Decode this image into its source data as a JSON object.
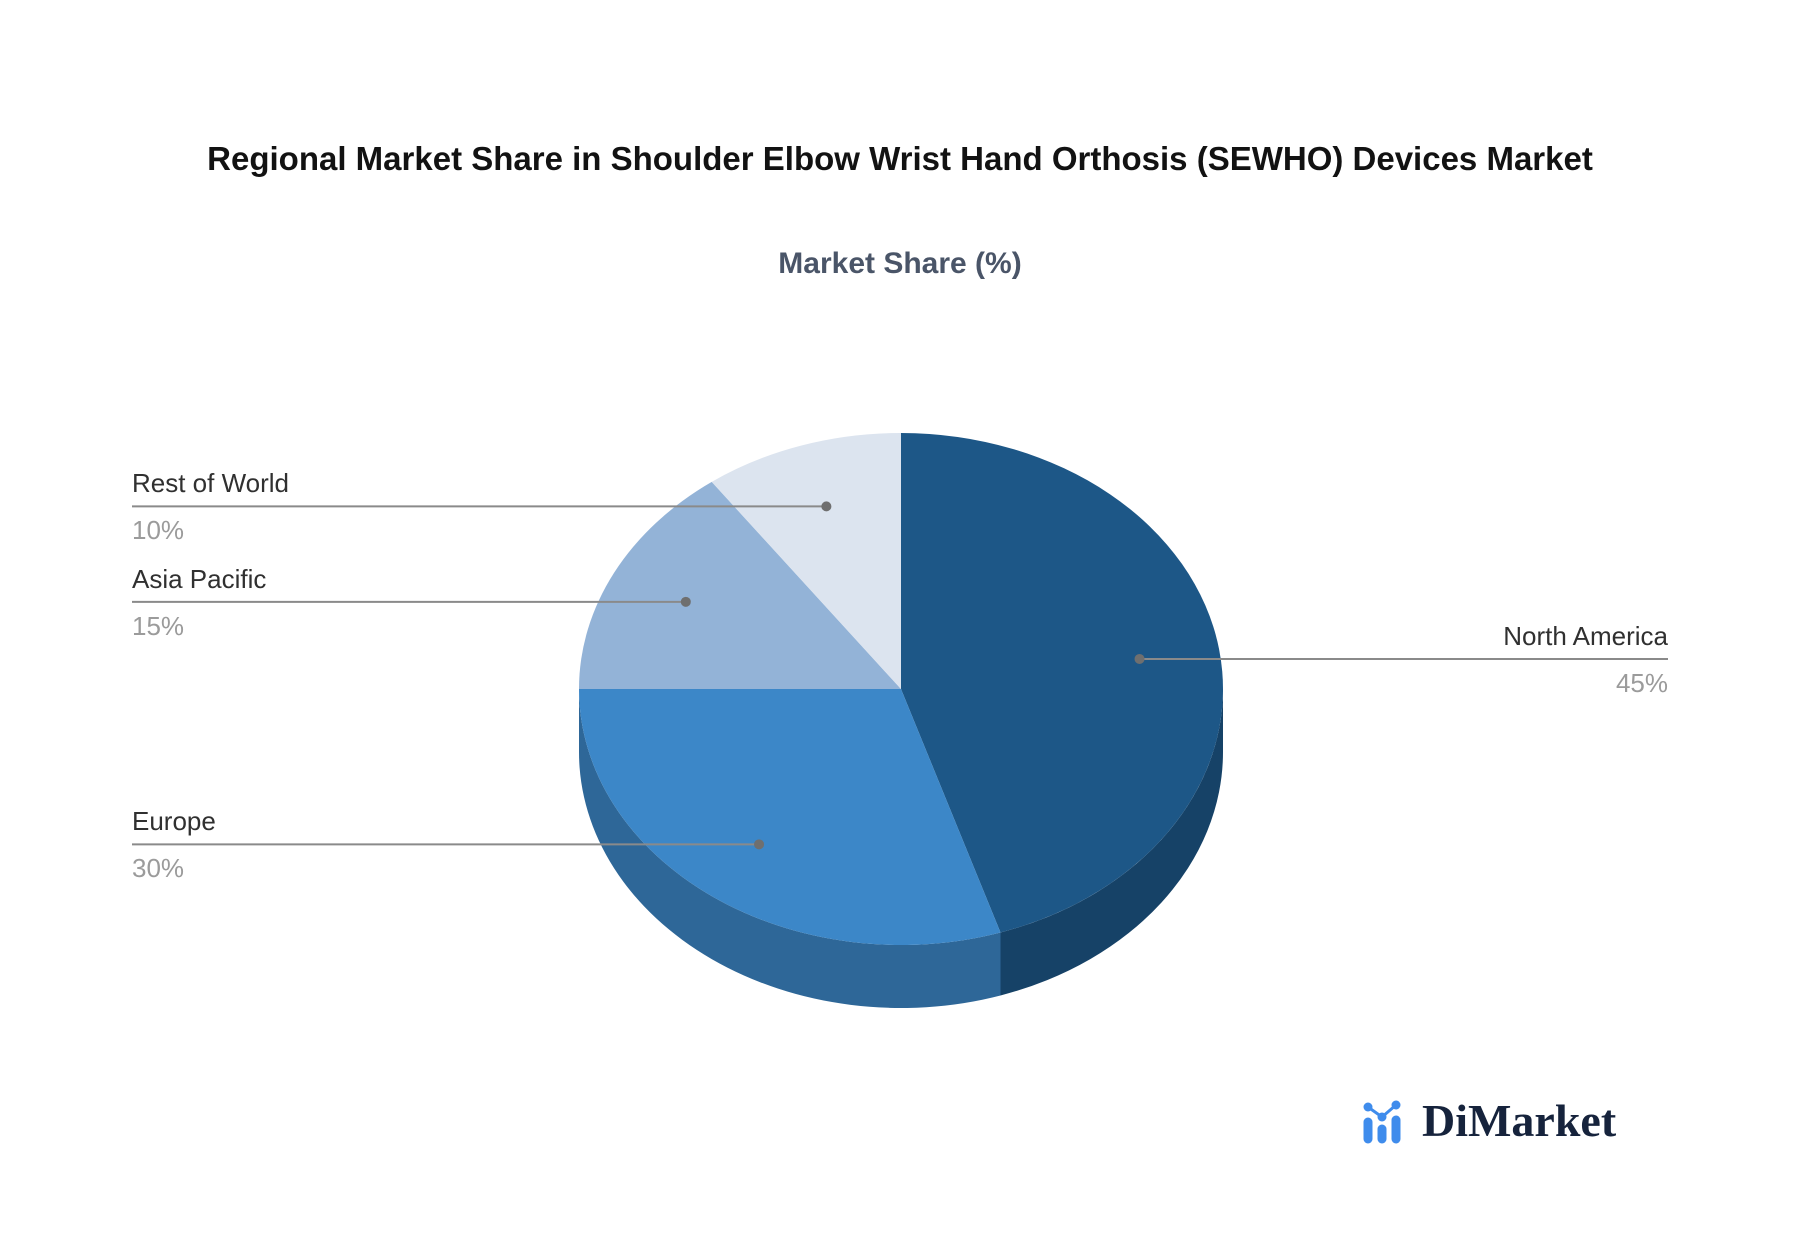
{
  "chart_data": {
    "type": "pie",
    "style": "3d-pie",
    "title": "Regional Market Share in Shoulder Elbow Wrist Hand Orthosis (SEWHO) Devices Market",
    "subtitle": "Market Share (%)",
    "unit": "%",
    "categories": [
      "North America",
      "Europe",
      "Asia Pacific",
      "Rest of World"
    ],
    "values": [
      45,
      30,
      15,
      10
    ],
    "labels": [
      "45%",
      "30%",
      "15%",
      "10%"
    ],
    "colors": [
      "#1D5787",
      "#3C87C8",
      "#93B3D7",
      "#DCE4EF"
    ],
    "start_angle_deg": 0,
    "direction": "clockwise",
    "legend_position": "none",
    "leader_line_color": "#8a8a8a",
    "leader_dot_color": "#6f6f6f"
  },
  "branding": {
    "logo_text": "DiMarket",
    "logo_icon": "bar-chart-logo-icon",
    "logo_color": "#3f8cec",
    "logo_text_color": "#16233c"
  }
}
